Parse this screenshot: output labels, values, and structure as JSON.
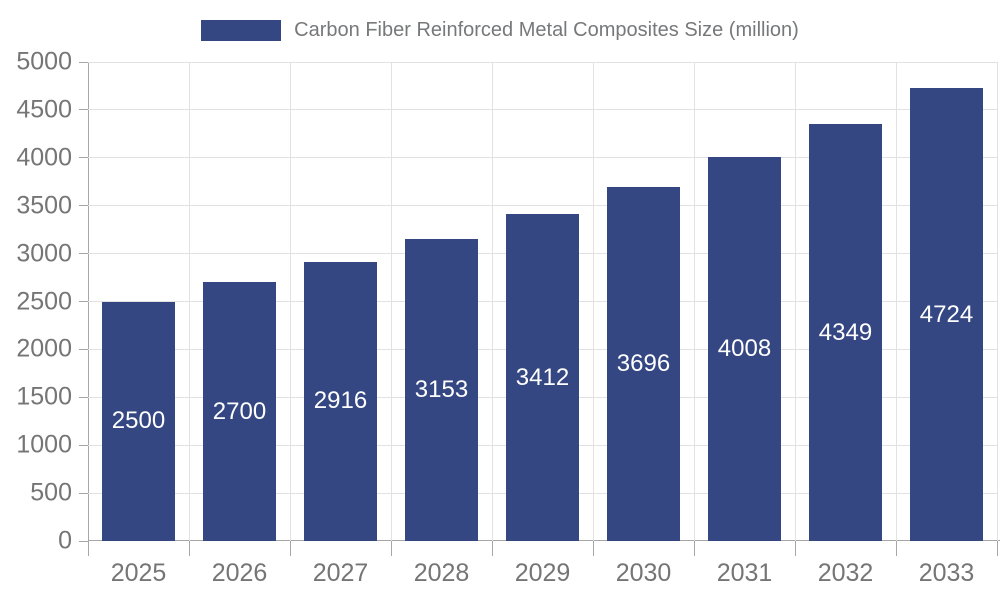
{
  "legend": {
    "label": "Carbon Fiber Reinforced Metal Composites Size (million)",
    "swatch_color": "#344783"
  },
  "chart_data": {
    "type": "bar",
    "title": "Carbon Fiber Reinforced Metal Composites Size (million)",
    "categories": [
      "2025",
      "2026",
      "2027",
      "2028",
      "2029",
      "2030",
      "2031",
      "2032",
      "2033"
    ],
    "values": [
      2500,
      2700,
      2916,
      3153,
      3412,
      3696,
      4008,
      4349,
      4724
    ],
    "xlabel": "",
    "ylabel": "",
    "ylim": [
      0,
      5000
    ],
    "ytick_step": 500,
    "ytick_labels": [
      "0",
      "500",
      "1000",
      "1500",
      "2000",
      "2500",
      "3000",
      "3500",
      "4000",
      "4500",
      "5000"
    ],
    "bar_color": "#344783",
    "value_label_color": "#ffffff",
    "axis_label_color": "#757575",
    "grid": true,
    "grid_color": "#e2e2e2",
    "axis_line_color": "#a7a7a7",
    "legend_position": "top",
    "bar_band_fraction": 0.715
  }
}
